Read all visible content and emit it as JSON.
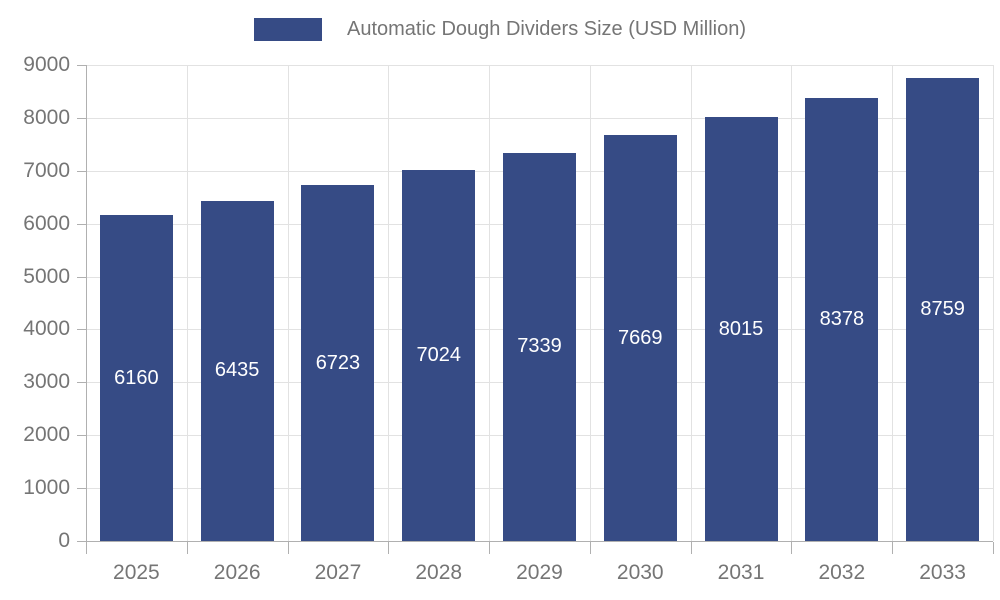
{
  "legend": {
    "label": "Automatic Dough Dividers Size (USD Million)"
  },
  "chart_data": {
    "type": "bar",
    "title": "Automatic Dough Dividers Size (USD Million)",
    "series_name": "Automatic Dough Dividers Size (USD Million)",
    "categories": [
      "2025",
      "2026",
      "2027",
      "2028",
      "2029",
      "2030",
      "2031",
      "2032",
      "2033"
    ],
    "values": [
      6160,
      6435,
      6723,
      7024,
      7339,
      7669,
      8015,
      8378,
      8759
    ],
    "value_labels": [
      "6160",
      "6435",
      "6723",
      "7024",
      "7339",
      "7669",
      "8015",
      "8378",
      "8759"
    ],
    "xlabel": "",
    "ylabel": "",
    "ylim": [
      0,
      9000
    ],
    "y_ticks": [
      0,
      1000,
      2000,
      3000,
      4000,
      5000,
      6000,
      7000,
      8000,
      9000
    ],
    "grid": true,
    "legend_position": "top",
    "value_label_position": "inside-center",
    "colors": {
      "bar": "#364B85",
      "grid": "#E2E2E2",
      "axis_line": "#B0B0B0",
      "axis_label": "#757575",
      "value_label": "#FFFFFF",
      "background": "#FFFFFF"
    }
  }
}
